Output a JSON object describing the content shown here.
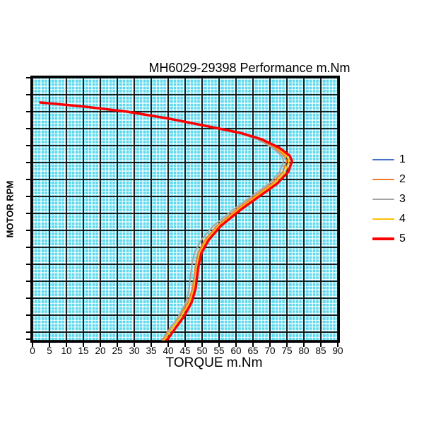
{
  "title": "MH6029-29398  Performance m.Nm",
  "x_axis": {
    "label": "TORQUE  m.Nm",
    "ticks": [
      "0",
      "5",
      "10",
      "15",
      "20",
      "25",
      "30",
      "35",
      "40",
      "45",
      "50",
      "55",
      "60",
      "65",
      "70",
      "75",
      "80",
      "85",
      "90"
    ]
  },
  "y_axis": {
    "label": "MOTOR RPM"
  },
  "legend": [
    {
      "label": "1",
      "color": "#4472C4",
      "thickness": 2.2
    },
    {
      "label": "2",
      "color": "#ED7D31",
      "thickness": 2.2
    },
    {
      "label": "3",
      "color": "#A5A5A5",
      "thickness": 2.2
    },
    {
      "label": "4",
      "color": "#FFC000",
      "thickness": 2.2
    },
    {
      "label": "5",
      "color": "#FF0000",
      "thickness": 3.5
    }
  ],
  "grid_colors": {
    "background": "#5BD9EE",
    "minor": "#FFFFFF",
    "major": "#000000"
  },
  "chart_data": {
    "type": "line",
    "title": "MH6029-29398  Performance m.Nm",
    "xlabel": "TORQUE m.Nm",
    "ylabel": "MOTOR RPM",
    "xlim": [
      0,
      90
    ],
    "x_major_step": 5,
    "x_minor_step": 1,
    "y_tick_labels_shown": false,
    "y_units": "fraction of RPM axis height (0 = bottom, 1 = top); RPM scale unlabeled in source",
    "grid": "major black + minor white on cyan",
    "legend_position": "right",
    "series": [
      {
        "name": "1",
        "color": "#4472C4",
        "stroke_width": 2,
        "points": [
          [
            2.3,
            0.906
          ],
          [
            15.4,
            0.89
          ],
          [
            27.9,
            0.871
          ],
          [
            40.4,
            0.844
          ],
          [
            52.9,
            0.812
          ],
          [
            61.3,
            0.79
          ],
          [
            67.5,
            0.766
          ],
          [
            72.7,
            0.734
          ],
          [
            75.8,
            0.704
          ],
          [
            76.4,
            0.683
          ],
          [
            75.3,
            0.642
          ],
          [
            72.0,
            0.597
          ],
          [
            67.0,
            0.551
          ],
          [
            61.2,
            0.497
          ],
          [
            55.3,
            0.435
          ],
          [
            51.8,
            0.382
          ],
          [
            49.7,
            0.333
          ],
          [
            48.9,
            0.288
          ],
          [
            48.4,
            0.242
          ],
          [
            48.0,
            0.199
          ],
          [
            46.8,
            0.145
          ],
          [
            44.5,
            0.091
          ],
          [
            41.8,
            0.043
          ],
          [
            39.9,
            0.008
          ],
          [
            39.5,
            0.003
          ]
        ]
      },
      {
        "name": "2",
        "color": "#ED7D31",
        "stroke_width": 2,
        "points": [
          [
            2.3,
            0.906
          ],
          [
            15.4,
            0.89
          ],
          [
            27.9,
            0.871
          ],
          [
            40.3,
            0.844
          ],
          [
            52.7,
            0.812
          ],
          [
            60.9,
            0.79
          ],
          [
            66.7,
            0.766
          ],
          [
            71.4,
            0.734
          ],
          [
            74.2,
            0.704
          ],
          [
            74.9,
            0.683
          ],
          [
            73.8,
            0.642
          ],
          [
            70.5,
            0.597
          ],
          [
            65.6,
            0.551
          ],
          [
            59.9,
            0.497
          ],
          [
            54.2,
            0.435
          ],
          [
            50.8,
            0.382
          ],
          [
            48.8,
            0.333
          ],
          [
            48.1,
            0.288
          ],
          [
            47.6,
            0.242
          ],
          [
            47.2,
            0.199
          ],
          [
            45.8,
            0.145
          ],
          [
            43.2,
            0.091
          ],
          [
            40.3,
            0.043
          ],
          [
            38.6,
            0.008
          ],
          [
            38.2,
            0.003
          ]
        ]
      },
      {
        "name": "3",
        "color": "#A5A5A5",
        "stroke_width": 2,
        "points": [
          [
            2.3,
            0.906
          ],
          [
            15.4,
            0.89
          ],
          [
            27.9,
            0.871
          ],
          [
            40.3,
            0.844
          ],
          [
            52.6,
            0.812
          ],
          [
            60.7,
            0.79
          ],
          [
            66.3,
            0.766
          ],
          [
            70.8,
            0.734
          ],
          [
            73.4,
            0.704
          ],
          [
            74.0,
            0.683
          ],
          [
            72.9,
            0.642
          ],
          [
            69.7,
            0.597
          ],
          [
            64.8,
            0.551
          ],
          [
            59.0,
            0.497
          ],
          [
            53.2,
            0.435
          ],
          [
            49.7,
            0.382
          ],
          [
            47.7,
            0.333
          ],
          [
            47.0,
            0.288
          ],
          [
            46.5,
            0.242
          ],
          [
            46.2,
            0.199
          ],
          [
            45.2,
            0.145
          ],
          [
            43.0,
            0.091
          ],
          [
            40.5,
            0.043
          ],
          [
            38.9,
            0.008
          ],
          [
            38.5,
            0.003
          ]
        ]
      },
      {
        "name": "4",
        "color": "#FFC000",
        "stroke_width": 2,
        "points": [
          [
            2.3,
            0.906
          ],
          [
            15.4,
            0.89
          ],
          [
            27.9,
            0.871
          ],
          [
            40.4,
            0.844
          ],
          [
            52.9,
            0.812
          ],
          [
            61.1,
            0.79
          ],
          [
            67.1,
            0.766
          ],
          [
            72.0,
            0.734
          ],
          [
            74.9,
            0.704
          ],
          [
            75.6,
            0.683
          ],
          [
            74.5,
            0.642
          ],
          [
            71.2,
            0.597
          ],
          [
            66.3,
            0.551
          ],
          [
            60.5,
            0.497
          ],
          [
            54.8,
            0.435
          ],
          [
            51.3,
            0.382
          ],
          [
            49.3,
            0.333
          ],
          [
            48.6,
            0.288
          ],
          [
            48.1,
            0.242
          ],
          [
            47.7,
            0.199
          ],
          [
            46.3,
            0.145
          ],
          [
            43.8,
            0.091
          ],
          [
            41.0,
            0.043
          ],
          [
            39.2,
            0.008
          ],
          [
            38.8,
            0.003
          ]
        ]
      },
      {
        "name": "5",
        "color": "#FF0000",
        "stroke_width": 3.5,
        "points": [
          [
            2.3,
            0.906
          ],
          [
            15.4,
            0.89
          ],
          [
            27.9,
            0.871
          ],
          [
            40.4,
            0.844
          ],
          [
            52.9,
            0.812
          ],
          [
            61.3,
            0.79
          ],
          [
            67.5,
            0.766
          ],
          [
            72.7,
            0.734
          ],
          [
            75.8,
            0.704
          ],
          [
            76.5,
            0.683
          ],
          [
            75.4,
            0.642
          ],
          [
            72.1,
            0.597
          ],
          [
            67.1,
            0.551
          ],
          [
            61.3,
            0.497
          ],
          [
            55.4,
            0.435
          ],
          [
            51.9,
            0.382
          ],
          [
            49.8,
            0.333
          ],
          [
            49.0,
            0.288
          ],
          [
            48.5,
            0.242
          ],
          [
            48.1,
            0.199
          ],
          [
            46.9,
            0.145
          ],
          [
            44.6,
            0.091
          ],
          [
            41.9,
            0.043
          ],
          [
            40.0,
            0.008
          ],
          [
            39.6,
            0.003
          ]
        ]
      }
    ]
  }
}
